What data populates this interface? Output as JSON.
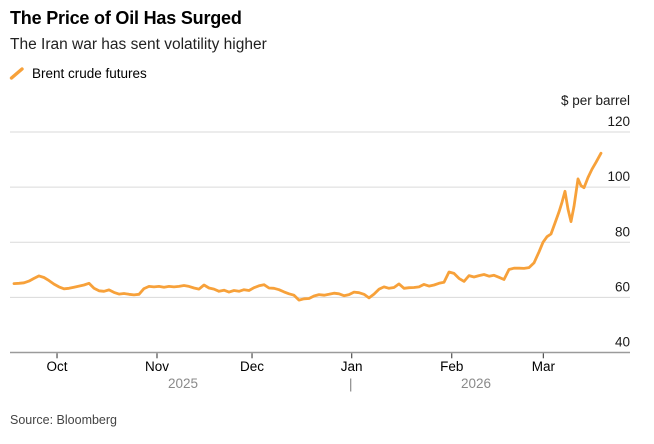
{
  "header": {
    "title": "The Price of Oil Has Surged",
    "subtitle": "The Iran war has sent volatility higher"
  },
  "legend": {
    "label": "Brent crude futures"
  },
  "unit_label": "$ per barrel",
  "source": "Source: Bloomberg",
  "colors": {
    "line": "#F7A13A",
    "grid": "#DADADA",
    "axis": "#9B9B9B",
    "tick": "#4D4D4D",
    "year": "#8A8A8A",
    "ylabel": "#1A1A1A",
    "xlabel": "#000000"
  },
  "chart_data": {
    "type": "line",
    "title": "The Price of Oil Has Surged",
    "subtitle": "The Iran war has sent volatility higher",
    "ylabel": "$ per barrel",
    "ylim": [
      40,
      120
    ],
    "y_ticks": [
      40,
      60,
      80,
      100,
      120
    ],
    "grid": "horizontal",
    "legend_position": "top-left",
    "x_ticks": [
      {
        "label": "Oct",
        "pos": 0.0733
      },
      {
        "label": "Nov",
        "pos": 0.2436
      },
      {
        "label": "Dec",
        "pos": 0.4055
      },
      {
        "label": "Jan",
        "pos": 0.5753
      },
      {
        "label": "Feb",
        "pos": 0.7457
      },
      {
        "label": "Mar",
        "pos": 0.9018
      }
    ],
    "year_labels": [
      {
        "label": "2025",
        "pos": 0.2879
      },
      {
        "label": "2026",
        "pos": 0.787
      }
    ],
    "year_divider_pos": 0.5736,
    "series": [
      {
        "name": "Brent crude futures",
        "color": "#F7A13A",
        "points": [
          [
            0.0,
            65.0
          ],
          [
            0.0085,
            65.1
          ],
          [
            0.017,
            65.3
          ],
          [
            0.0256,
            65.9
          ],
          [
            0.0341,
            66.9
          ],
          [
            0.0426,
            67.8
          ],
          [
            0.0511,
            67.2
          ],
          [
            0.0596,
            66.1
          ],
          [
            0.0681,
            64.8
          ],
          [
            0.0767,
            63.8
          ],
          [
            0.0852,
            63.1
          ],
          [
            0.0937,
            63.3
          ],
          [
            0.1022,
            63.7
          ],
          [
            0.1107,
            64.1
          ],
          [
            0.1193,
            64.5
          ],
          [
            0.1278,
            65.1
          ],
          [
            0.1363,
            63.3
          ],
          [
            0.1448,
            62.4
          ],
          [
            0.1533,
            62.2
          ],
          [
            0.1618,
            62.7
          ],
          [
            0.1704,
            61.8
          ],
          [
            0.1789,
            61.2
          ],
          [
            0.1874,
            61.4
          ],
          [
            0.1959,
            61.1
          ],
          [
            0.2044,
            60.9
          ],
          [
            0.213,
            61.1
          ],
          [
            0.2215,
            63.2
          ],
          [
            0.23,
            64.0
          ],
          [
            0.2385,
            63.8
          ],
          [
            0.247,
            64.0
          ],
          [
            0.2556,
            63.7
          ],
          [
            0.2641,
            64.0
          ],
          [
            0.2726,
            63.8
          ],
          [
            0.2811,
            64.0
          ],
          [
            0.2896,
            64.3
          ],
          [
            0.2981,
            64.0
          ],
          [
            0.3067,
            63.4
          ],
          [
            0.3152,
            63.0
          ],
          [
            0.3237,
            64.5
          ],
          [
            0.3322,
            63.4
          ],
          [
            0.3407,
            63.0
          ],
          [
            0.3493,
            62.2
          ],
          [
            0.3578,
            62.6
          ],
          [
            0.3663,
            61.9
          ],
          [
            0.3748,
            62.5
          ],
          [
            0.3833,
            62.2
          ],
          [
            0.3919,
            62.8
          ],
          [
            0.4004,
            62.5
          ],
          [
            0.4089,
            63.5
          ],
          [
            0.4174,
            64.2
          ],
          [
            0.4259,
            64.6
          ],
          [
            0.4344,
            63.4
          ],
          [
            0.443,
            63.3
          ],
          [
            0.4515,
            62.8
          ],
          [
            0.46,
            62.0
          ],
          [
            0.4685,
            61.3
          ],
          [
            0.477,
            60.8
          ],
          [
            0.4856,
            59.0
          ],
          [
            0.4941,
            59.5
          ],
          [
            0.5026,
            59.6
          ],
          [
            0.5111,
            60.5
          ],
          [
            0.5196,
            61.0
          ],
          [
            0.5282,
            60.8
          ],
          [
            0.5367,
            61.1
          ],
          [
            0.5452,
            61.5
          ],
          [
            0.5537,
            61.3
          ],
          [
            0.5622,
            60.6
          ],
          [
            0.5707,
            61.0
          ],
          [
            0.5793,
            61.9
          ],
          [
            0.5878,
            61.7
          ],
          [
            0.5963,
            61.1
          ],
          [
            0.6048,
            59.8
          ],
          [
            0.6133,
            61.2
          ],
          [
            0.6219,
            63.0
          ],
          [
            0.6304,
            63.8
          ],
          [
            0.6389,
            63.3
          ],
          [
            0.6474,
            63.6
          ],
          [
            0.6559,
            64.9
          ],
          [
            0.6644,
            63.3
          ],
          [
            0.673,
            63.5
          ],
          [
            0.6815,
            63.6
          ],
          [
            0.69,
            63.8
          ],
          [
            0.6985,
            64.7
          ],
          [
            0.707,
            64.1
          ],
          [
            0.7156,
            64.5
          ],
          [
            0.7241,
            65.1
          ],
          [
            0.7326,
            65.5
          ],
          [
            0.7411,
            69.2
          ],
          [
            0.7496,
            68.7
          ],
          [
            0.7581,
            66.9
          ],
          [
            0.7667,
            65.8
          ],
          [
            0.7752,
            67.9
          ],
          [
            0.7837,
            67.4
          ],
          [
            0.7922,
            67.9
          ],
          [
            0.8007,
            68.3
          ],
          [
            0.8093,
            67.7
          ],
          [
            0.8178,
            68.0
          ],
          [
            0.8263,
            67.3
          ],
          [
            0.8348,
            66.5
          ],
          [
            0.8433,
            70.1
          ],
          [
            0.8518,
            70.6
          ],
          [
            0.8604,
            70.6
          ],
          [
            0.8689,
            70.5
          ],
          [
            0.8774,
            70.8
          ],
          [
            0.8859,
            72.5
          ],
          [
            0.8944,
            76.5
          ],
          [
            0.9012,
            80.0
          ],
          [
            0.908,
            82.0
          ],
          [
            0.9148,
            83.0
          ],
          [
            0.9216,
            87.0
          ],
          [
            0.9284,
            91.0
          ],
          [
            0.9335,
            94.5
          ],
          [
            0.9387,
            98.5
          ],
          [
            0.9438,
            92.0
          ],
          [
            0.9489,
            87.5
          ],
          [
            0.954,
            93.0
          ],
          [
            0.9608,
            103.0
          ],
          [
            0.9659,
            100.5
          ],
          [
            0.971,
            99.8
          ],
          [
            0.9778,
            103.5
          ],
          [
            0.9846,
            106.5
          ],
          [
            0.9914,
            109.0
          ],
          [
            1.0,
            112.3
          ]
        ]
      }
    ]
  }
}
